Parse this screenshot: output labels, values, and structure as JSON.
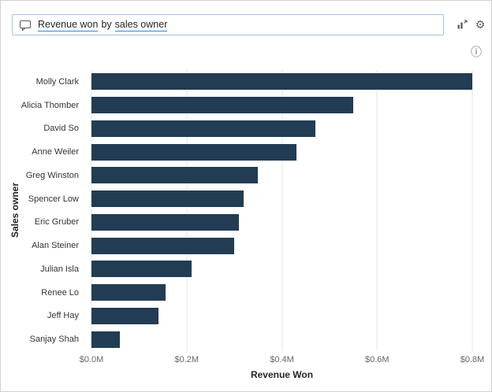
{
  "question_bar": {
    "parts": [
      {
        "text": "Revenue won",
        "recognized": true
      },
      {
        "text": "by",
        "recognized": false
      },
      {
        "text": "sales owner",
        "recognized": true
      }
    ]
  },
  "icons": {
    "gear": "⚙",
    "info": "ⓘ"
  },
  "colors": {
    "underline": "#2B88D8",
    "inputBorder": "#9DC3E6"
  },
  "chart_data": {
    "type": "bar",
    "orientation": "horizontal",
    "title": "",
    "xlabel": "Revenue Won",
    "ylabel": "Sales owner",
    "categories": [
      "Molly Clark",
      "Alicia Thomber",
      "David So",
      "Anne Weiler",
      "Greg Winston",
      "Spencer Low",
      "Eric Gruber",
      "Alan Steiner",
      "Julian Isla",
      "Renee Lo",
      "Jeff Hay",
      "Sanjay Shah"
    ],
    "values": [
      0.8,
      0.55,
      0.47,
      0.43,
      0.35,
      0.32,
      0.31,
      0.3,
      0.21,
      0.155,
      0.14,
      0.06
    ],
    "x_ticks": [
      "$0.0M",
      "$0.2M",
      "$0.4M",
      "$0.6M",
      "$0.8M"
    ],
    "xlim": [
      0,
      0.8
    ],
    "grid": true,
    "legend": false,
    "bar_color": "#223C54"
  }
}
